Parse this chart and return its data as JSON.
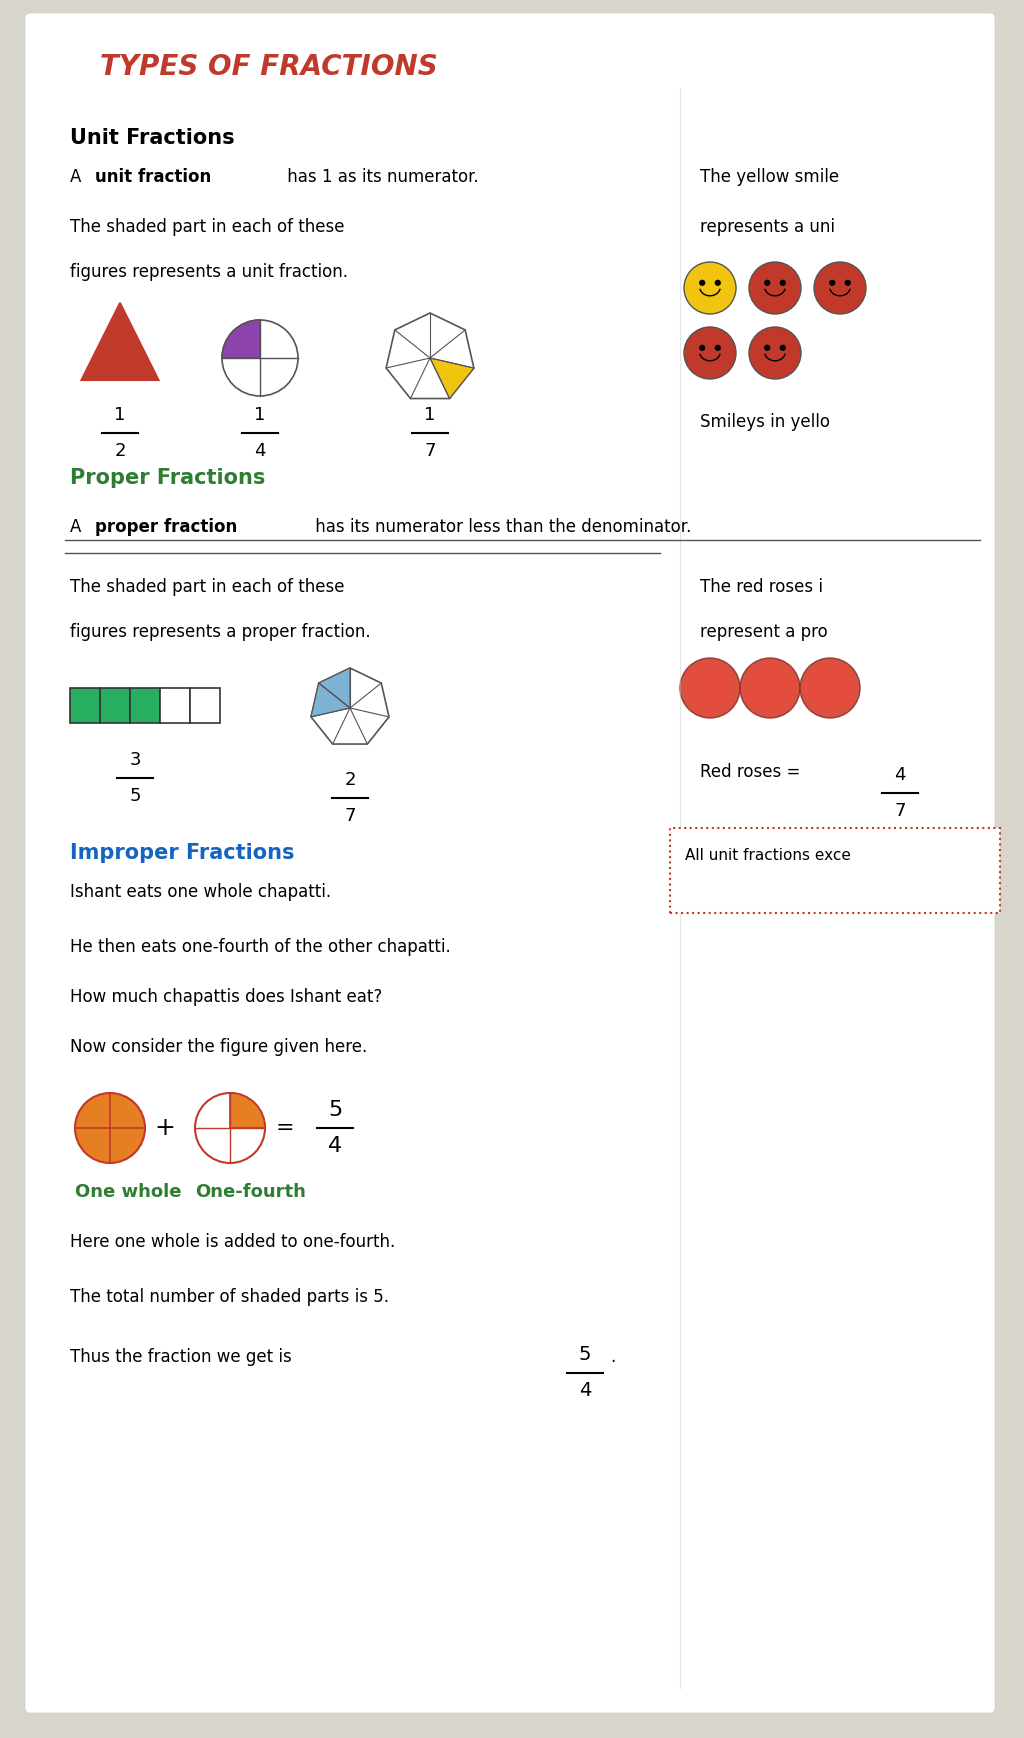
{
  "title": "TYPES OF FRACTIONS",
  "title_color": "#c0392b",
  "bg_color": "#d8d5cc",
  "section1_header": "Unit Fractions",
  "section1_body2": "The shaded part in each of these",
  "section1_body3": "figures represents a unit fraction.",
  "right1_line1": "The yellow smile",
  "right1_line2": "represents a uni",
  "right1_line3": "Smileys in yello",
  "section2_header": "Proper Fractions",
  "section2_header_color": "#2e7d32",
  "section2_body2": "The shaded part in each of these",
  "section2_body3": "figures represents a proper fraction.",
  "right2_line1": "The red roses i",
  "right2_line2": "represent a pro",
  "section3_header": "Improper Fractions",
  "section3_header_color": "#1565c0",
  "right3_box": "All unit fractions exce",
  "section3_body1": "Ishant eats one whole chapatti.",
  "section3_body2": "He then eats one-fourth of the other chapatti.",
  "section3_body3": "How much chapattis does Ishant eat?",
  "section3_body4": "Now consider the figure given here.",
  "one_whole": "One whole",
  "one_fourth": "One-fourth",
  "body_final1": "Here one whole is added to one-fourth.",
  "body_final2": "The total number of shaded parts is 5.",
  "body_final3": "Thus the fraction we get is "
}
